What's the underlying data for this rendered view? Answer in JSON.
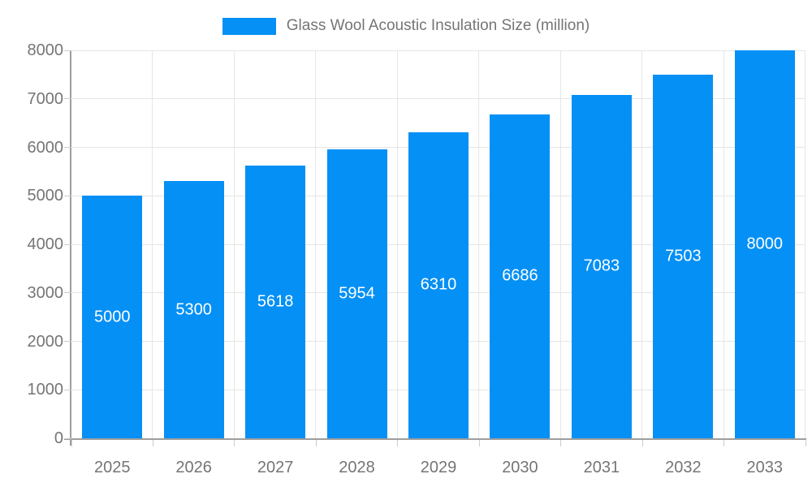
{
  "chart_data": {
    "type": "bar",
    "title": "Glass Wool Acoustic Insulation Size (million)",
    "legend": [
      "Glass Wool Acoustic Insulation Size (million)"
    ],
    "legend_position": "top",
    "categories": [
      "2025",
      "2026",
      "2027",
      "2028",
      "2029",
      "2030",
      "2031",
      "2032",
      "2033"
    ],
    "values": [
      5000,
      5300,
      5618,
      5954,
      6310,
      6686,
      7083,
      7503,
      8000
    ],
    "bar_value_labels": [
      "5000",
      "5300",
      "5618",
      "5954",
      "6310",
      "6686",
      "7083",
      "7503",
      "8000"
    ],
    "xlabel": "",
    "ylabel": "",
    "ylim": [
      0,
      8000
    ],
    "y_tick_step": 1000,
    "y_tick_labels": [
      "0",
      "1000",
      "2000",
      "3000",
      "4000",
      "5000",
      "6000",
      "7000",
      "8000"
    ],
    "grid": true
  },
  "colors": {
    "bar": "#0590f5",
    "bar_label_text": "#ffffff",
    "gridline": "#e6e6e6",
    "axis_line": "#9e9e9e",
    "tick": "#cccccc",
    "label_text": "#757575",
    "background": "#ffffff"
  }
}
